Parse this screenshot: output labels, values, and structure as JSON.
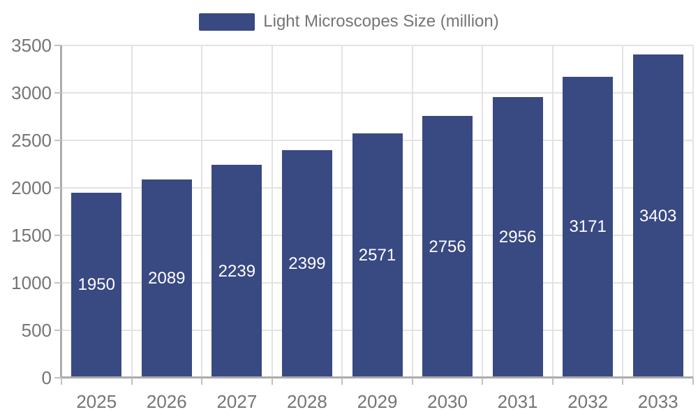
{
  "chart_data": {
    "type": "bar",
    "title": "",
    "legend": "Light Microscopes Size (million)",
    "categories": [
      "2025",
      "2026",
      "2027",
      "2028",
      "2029",
      "2030",
      "2031",
      "2032",
      "2033"
    ],
    "series": [
      {
        "name": "Light Microscopes Size (million)",
        "values": [
          1950,
          2089,
          2239,
          2399,
          2571,
          2756,
          2956,
          3171,
          3403
        ]
      }
    ],
    "xlabel": "",
    "ylabel": "",
    "ylim": [
      0,
      3500
    ],
    "ytick_interval": 500,
    "ytick_labels": [
      "0",
      "500",
      "1000",
      "1500",
      "2000",
      "2500",
      "3000",
      "3500"
    ],
    "grid": true,
    "legend_position": "top-center",
    "value_label_position": "inside-center",
    "colors": {
      "bar": "#394982",
      "value_label": "#ffffff",
      "axis_text": "#757575",
      "legend_text": "#757575",
      "grid_line": "#e3e3e3",
      "axis_line": "#ababab",
      "tick": "#c2c2c2",
      "background": "#ffffff"
    }
  }
}
